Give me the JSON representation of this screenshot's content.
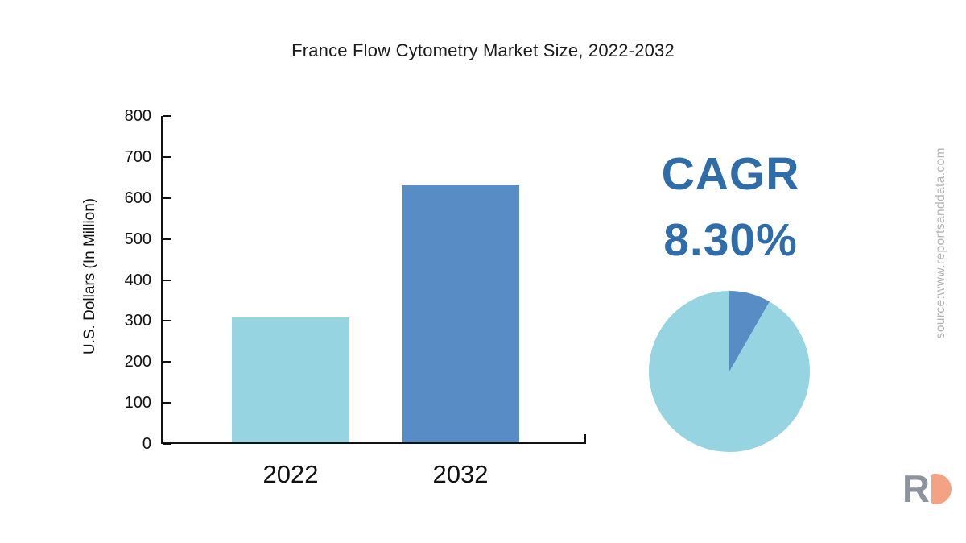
{
  "title": "France Flow Cytometry Market Size, 2022-2032",
  "chart_data": [
    {
      "type": "bar",
      "title": "France Flow Cytometry Market Size, 2022-2032",
      "categories": [
        "2022",
        "2032"
      ],
      "values": [
        305,
        628
      ],
      "bar_colors": [
        "#95d4e0",
        "#578dc4"
      ],
      "xlabel": "",
      "ylabel": "U.S. Dollars (In Million)",
      "ylim": [
        0,
        800
      ],
      "yticks": [
        0,
        100,
        200,
        300,
        400,
        500,
        600,
        700,
        800
      ],
      "grid": false,
      "legend": "none"
    },
    {
      "type": "pie",
      "start_angle_deg": 0,
      "direction": "clockwise",
      "slices": [
        {
          "name": "cagr-highlight",
          "value": 8.3,
          "color": "#578dc4"
        },
        {
          "name": "remainder",
          "value": 91.7,
          "color": "#95d4e0"
        }
      ]
    }
  ],
  "cagr": {
    "label": "CAGR",
    "value": "8.30%",
    "color": "#2e6da9"
  },
  "source": {
    "text": "source:www.reportsanddata.com"
  },
  "logo": {
    "letter": "R",
    "r_color": "#8e929c",
    "d_color": "#f4a284"
  },
  "axis_color": "#111111"
}
